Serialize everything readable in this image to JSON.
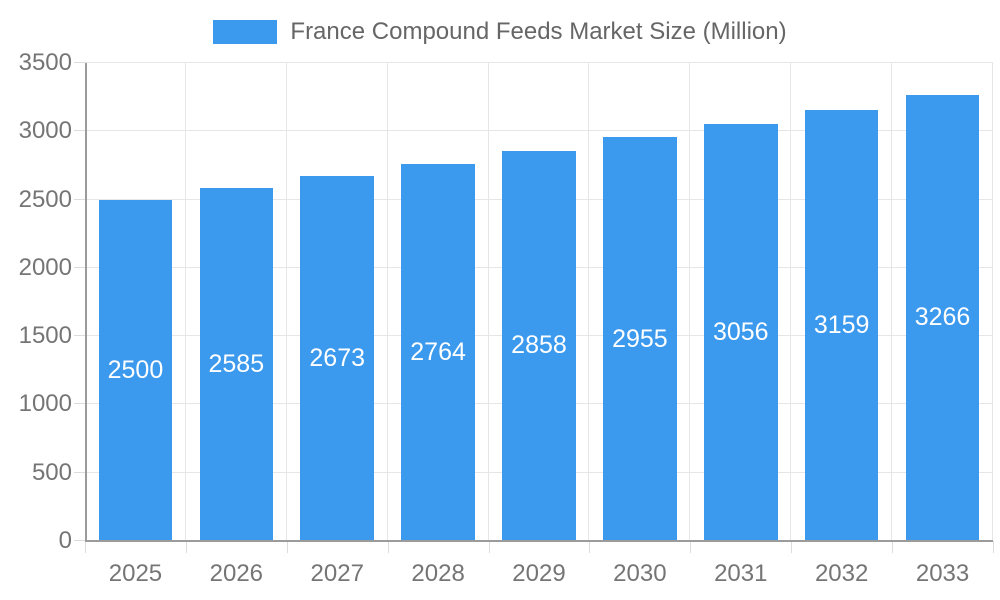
{
  "chart_data": {
    "type": "bar",
    "title": "France Compound Feeds Market Size (Million)",
    "categories": [
      "2025",
      "2026",
      "2027",
      "2028",
      "2029",
      "2030",
      "2031",
      "2032",
      "2033"
    ],
    "values": [
      2500,
      2585,
      2673,
      2764,
      2858,
      2955,
      3056,
      3159,
      3266
    ],
    "series": [
      {
        "name": "France Compound Feeds Market Size (Million)",
        "values": [
          2500,
          2585,
          2673,
          2764,
          2858,
          2955,
          3056,
          3159,
          3266
        ]
      }
    ],
    "xlabel": "",
    "ylabel": "",
    "ylim": [
      0,
      3500
    ],
    "y_ticks": [
      0,
      500,
      1000,
      1500,
      2000,
      2500,
      3000,
      3500
    ],
    "grid": true,
    "legend_position": "top",
    "bar_color": "#3B99EE",
    "bar_label_color": "#FFFFFF",
    "axis_text_color": "#757575",
    "legend_text_color": "#666666",
    "grid_color": "#E6E6E6",
    "tick_color": "#DCDCDC",
    "axis_line_color": "#9B9B9B"
  }
}
